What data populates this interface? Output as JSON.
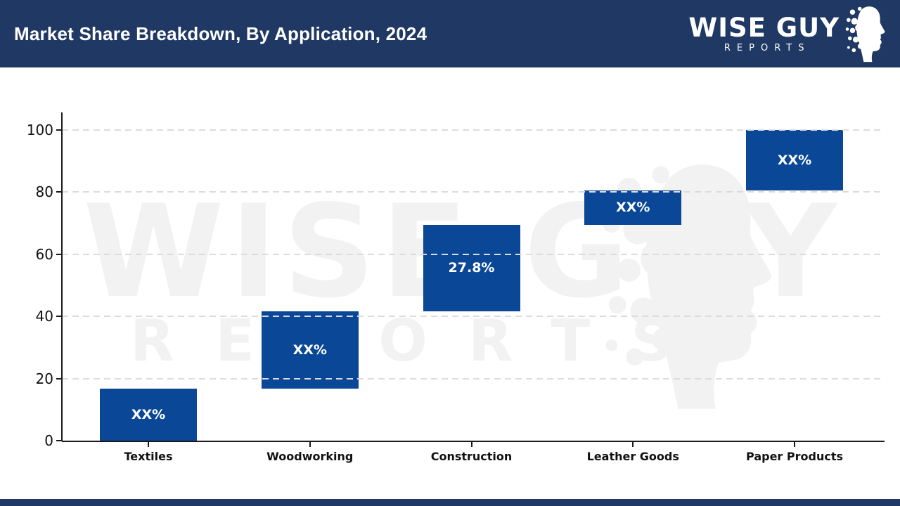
{
  "header": {
    "title": "Market Share Breakdown, By Application, 2024",
    "bg_color": "#1f3864",
    "logo": {
      "line1": "WISE GUY",
      "line2": "REPORTS"
    }
  },
  "watermark": {
    "line1": "WISE GUY",
    "line2": "REPORTS",
    "color": "#f2f2f2"
  },
  "colors": {
    "bar": "#0a4796",
    "bar_label": "#ffffff",
    "axis": "#1a1a1a",
    "grid": "#dcdcdc",
    "header_bg": "#1f3864",
    "title_text": "#ffffff"
  },
  "chart_data": {
    "type": "bar",
    "subtype": "waterfall",
    "title": "Market Share Breakdown, By Application, 2024",
    "xlabel": "",
    "ylabel": "",
    "ylim": [
      0,
      100
    ],
    "yticks": [
      0,
      20,
      40,
      60,
      80,
      100
    ],
    "grid": "horizontal-dashed-above-bars",
    "legend": "none",
    "categories": [
      "Textiles",
      "Woodworking",
      "Construction",
      "Leather Goods",
      "Paper Products"
    ],
    "segments": [
      {
        "category": "Textiles",
        "start": 0,
        "end": 16.7,
        "value": 16.7,
        "label": "XX%"
      },
      {
        "category": "Woodworking",
        "start": 16.7,
        "end": 41.6,
        "value": 24.9,
        "label": "XX%"
      },
      {
        "category": "Construction",
        "start": 41.6,
        "end": 69.4,
        "value": 27.8,
        "label": "27.8%"
      },
      {
        "category": "Leather Goods",
        "start": 69.4,
        "end": 80.5,
        "value": 11.1,
        "label": "XX%"
      },
      {
        "category": "Paper Products",
        "start": 80.5,
        "end": 100,
        "value": 19.5,
        "label": "XX%"
      }
    ]
  }
}
